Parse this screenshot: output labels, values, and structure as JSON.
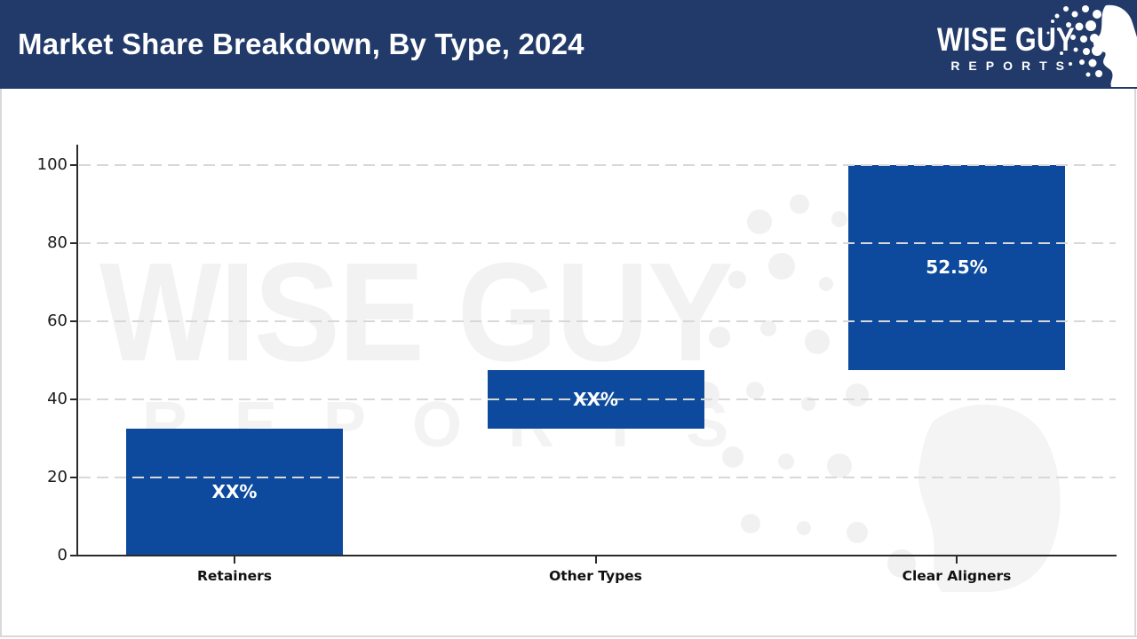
{
  "header": {
    "title": "Market Share Breakdown, By Type, 2024",
    "logo": {
      "name": "WISE GUY",
      "tagline": "REPORTS"
    }
  },
  "watermark": {
    "name": "WISE GUY",
    "tagline": "REPORTS"
  },
  "chart_data": {
    "type": "bar",
    "variant": "waterfall",
    "title": "Market Share Breakdown, By Type, 2024",
    "categories": [
      "Retainers",
      "Other Types",
      "Clear Aligners"
    ],
    "segments": [
      {
        "category": "Retainers",
        "start": 0,
        "end": 32.5,
        "label": "XX%"
      },
      {
        "category": "Other Types",
        "start": 32.5,
        "end": 47.5,
        "label": "XX%"
      },
      {
        "category": "Clear Aligners",
        "start": 47.5,
        "end": 100,
        "label": "52.5%"
      }
    ],
    "yticks": [
      0,
      20,
      40,
      60,
      80,
      100
    ],
    "ylim": [
      0,
      100
    ],
    "xlabel": "",
    "ylabel": "",
    "legend": "none",
    "grid": "horizontal-dashed",
    "bar_color": "#0d4a9d",
    "bar_label_color": "#ffffff"
  },
  "colors": {
    "header_bg": "#213a6a",
    "bar": "#0d4a9d",
    "axis": "#2a2a2a",
    "grid": "#d8d8d8",
    "watermark": "#f2f2f2"
  }
}
